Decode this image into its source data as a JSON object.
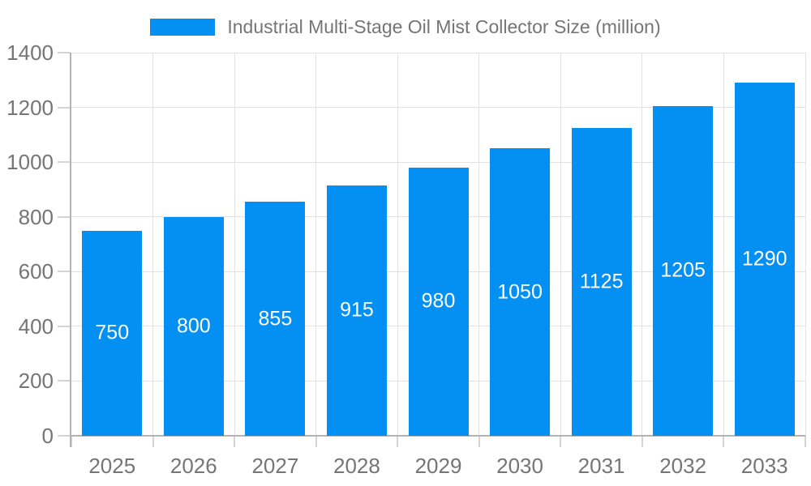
{
  "chart_data": {
    "type": "bar",
    "title": "Industrial Multi-Stage Oil Mist Collector Size (million)",
    "categories": [
      "2025",
      "2026",
      "2027",
      "2028",
      "2029",
      "2030",
      "2031",
      "2032",
      "2033"
    ],
    "values": [
      750,
      800,
      855,
      915,
      980,
      1050,
      1125,
      1205,
      1290
    ],
    "xlabel": "",
    "ylabel": "",
    "ylim": [
      0,
      1400
    ],
    "yticks": [
      0,
      200,
      400,
      600,
      800,
      1000,
      1200,
      1400
    ],
    "grid": true,
    "legend_position": "top-center",
    "value_labels": "centered-inside-bars",
    "colors": {
      "bar": "#0490f2",
      "value_label_text": "#ffffff",
      "axis_text": "#757575",
      "legend_text": "#757575",
      "gridline": "#e2e2e2",
      "axis_line": "#b3b3b3",
      "tick_mark": "#d4d4d4",
      "background": "#ffffff"
    }
  }
}
